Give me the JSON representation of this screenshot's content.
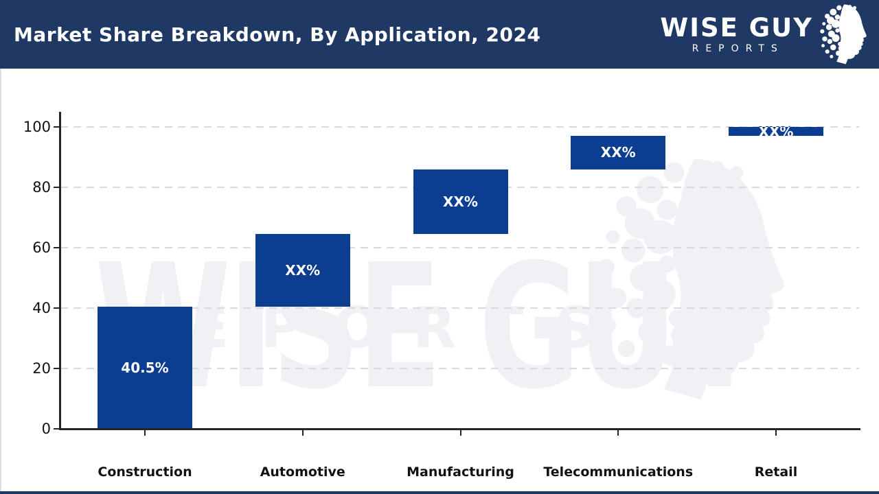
{
  "header": {
    "title": "Market Share Breakdown, By Application, 2024",
    "logo": {
      "line1": "WISE GUY",
      "line2": "REPORTS"
    }
  },
  "watermark": {
    "line1": "WISE GUY",
    "line2": "REPORTS"
  },
  "chart_data": {
    "type": "bar",
    "subtype": "waterfall-stacked-breakdown",
    "title": "Market Share Breakdown, By Application, 2024",
    "categories": [
      "Construction",
      "Automotive",
      "Manufacturing",
      "Telecommunications",
      "Retail"
    ],
    "segments": [
      {
        "category": "Construction",
        "start": 0,
        "end": 40.5,
        "label": "40.5%"
      },
      {
        "category": "Automotive",
        "start": 40.5,
        "end": 64.5,
        "label": "XX%"
      },
      {
        "category": "Manufacturing",
        "start": 64.5,
        "end": 86,
        "label": "XX%"
      },
      {
        "category": "Telecommunications",
        "start": 86,
        "end": 97,
        "label": "XX%"
      },
      {
        "category": "Retail",
        "start": 97,
        "end": 100,
        "label": "XX%"
      }
    ],
    "xlabel": "",
    "ylabel": "",
    "ylim": [
      0,
      105
    ],
    "yticks": [
      0,
      20,
      40,
      60,
      80,
      100
    ],
    "grid": "horizontal-dashed",
    "legend": "none"
  },
  "colors": {
    "header_bg": "#203864",
    "bar": "#0b3d91",
    "bar_label": "#ffffff",
    "bar_label_dark": "#14306e",
    "axis": "#262626",
    "grid": "#dadada",
    "watermark": "#f0f1f4"
  }
}
